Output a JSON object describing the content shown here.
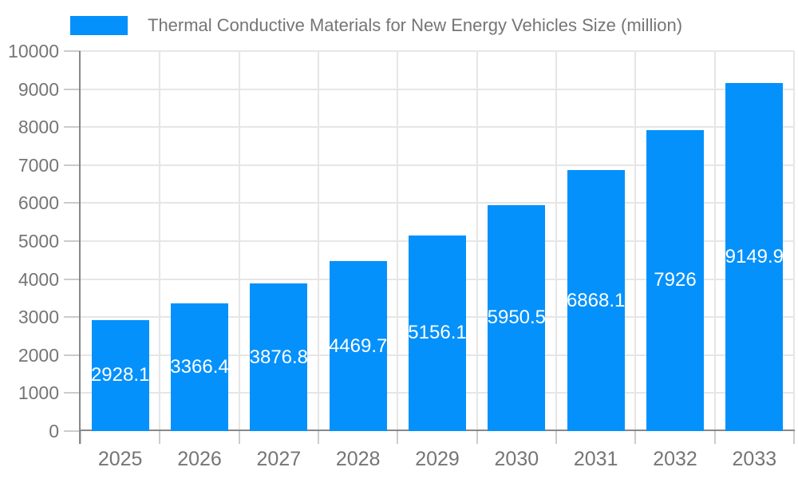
{
  "legend": {
    "label": "Thermal Conductive Materials for New Energy Vehicles Size (million)"
  },
  "chart_data": {
    "type": "bar",
    "title": "Thermal Conductive Materials for New Energy Vehicles Size (million)",
    "categories": [
      "2025",
      "2026",
      "2027",
      "2028",
      "2029",
      "2030",
      "2031",
      "2032",
      "2033"
    ],
    "series": [
      {
        "name": "Thermal Conductive Materials for New Energy Vehicles Size (million)",
        "values": [
          2928.1,
          3366.4,
          3876.8,
          4469.7,
          5156.1,
          5950.5,
          6868.1,
          7926,
          9149.9
        ]
      }
    ],
    "value_labels": [
      "2928.1",
      "3366.4",
      "3876.8",
      "4469.7",
      "5156.1",
      "5950.5",
      "6868.1",
      "7926",
      "9149.9"
    ],
    "xlabel": "",
    "ylabel": "",
    "ylim": [
      0,
      10000
    ],
    "yticks": [
      0,
      1000,
      2000,
      3000,
      4000,
      5000,
      6000,
      7000,
      8000,
      9000,
      10000
    ],
    "grid": true,
    "legend_position": "top",
    "colors": {
      "bar": "#0591fb",
      "value_label": "#ffffff",
      "axis_line": "#888888",
      "tick": "#cccccc",
      "gridline": "#e6e6e6",
      "text": "#757575",
      "background": "#ffffff"
    }
  }
}
